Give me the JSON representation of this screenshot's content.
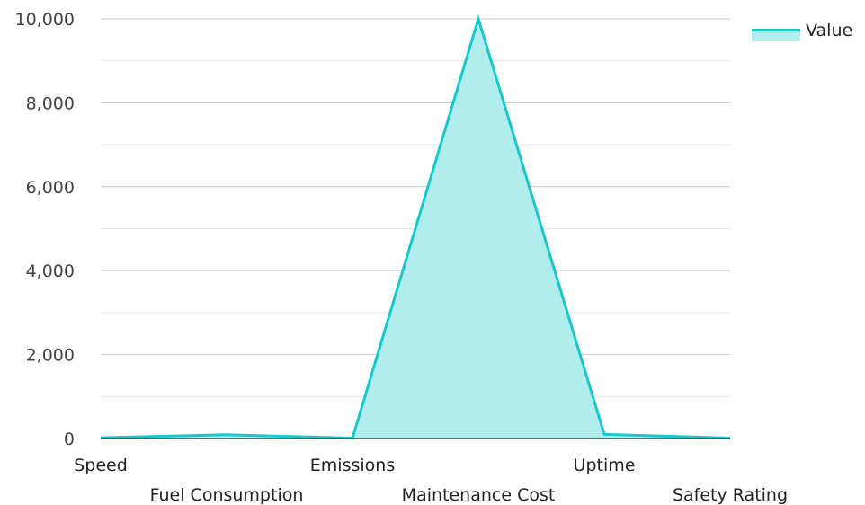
{
  "chart_data": {
    "type": "area",
    "categories": [
      "Speed",
      "Fuel Consumption",
      "Emissions",
      "Maintenance Cost",
      "Uptime",
      "Safety Rating"
    ],
    "series": [
      {
        "name": "Value",
        "values": [
          20,
          90,
          10,
          10000,
          100,
          10
        ],
        "color": "#17c9c9",
        "fill": "#b2eded"
      }
    ],
    "ylim": [
      0,
      10000
    ],
    "yticks": [
      "0",
      "2,000",
      "4,000",
      "6,000",
      "8,000",
      "10,000"
    ],
    "grid": true,
    "legend_position": "top-right"
  }
}
